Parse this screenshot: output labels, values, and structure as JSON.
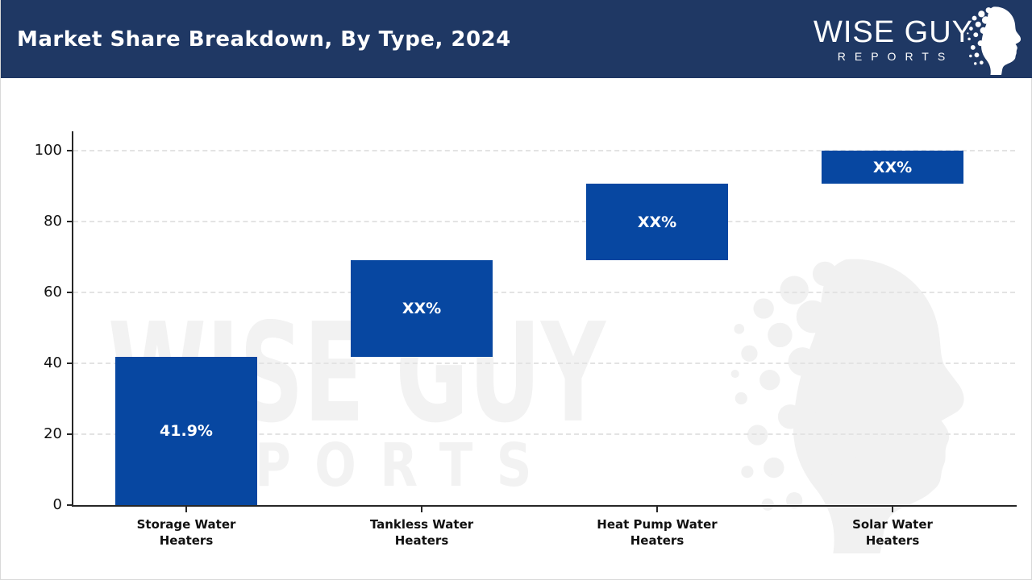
{
  "header": {
    "title": "Market Share Breakdown, By Type, 2024",
    "bg_color": "#1F3864",
    "logo": {
      "line1": "WISE GUY",
      "line2": "REPORTS"
    }
  },
  "watermark": {
    "line1": "WISE GUY",
    "line2": "REPORTS"
  },
  "chart_data": {
    "type": "bar",
    "subtype": "waterfall",
    "title": "Market Share Breakdown, By Type, 2024",
    "categories": [
      "Storage Water\nHeaters",
      "Tankless Water\nHeaters",
      "Heat Pump Water\nHeaters",
      "Solar Water\nHeaters"
    ],
    "segments": [
      {
        "category": "Storage Water Heaters",
        "start": 0,
        "end": 41.9,
        "value_label": "41.9%"
      },
      {
        "category": "Tankless Water Heaters",
        "start": 41.9,
        "end": 69.0,
        "value_label": "XX%"
      },
      {
        "category": "Heat Pump Water Heaters",
        "start": 69.0,
        "end": 90.6,
        "value_label": "XX%"
      },
      {
        "category": "Solar Water Heaters",
        "start": 90.6,
        "end": 100,
        "value_label": "XX%"
      }
    ],
    "y_ticks": [
      0,
      20,
      40,
      60,
      80,
      100
    ],
    "ylim": [
      0,
      104
    ],
    "xlabel": "",
    "ylabel": "",
    "bar_color": "#0747A1",
    "grid": "horizontal-dashed",
    "legend": "none"
  }
}
